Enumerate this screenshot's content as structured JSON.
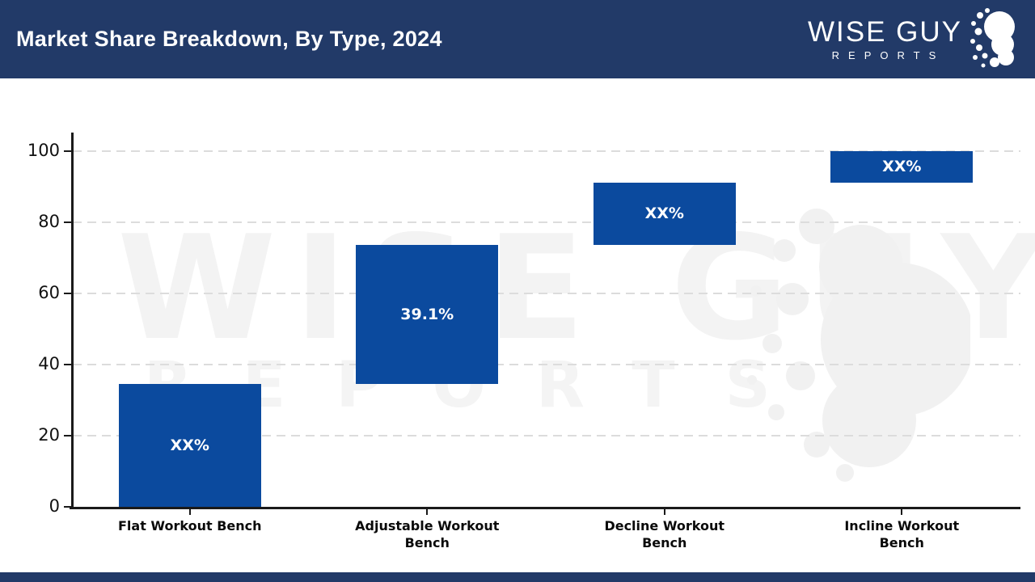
{
  "header": {
    "title": "Market Share Breakdown, By Type, 2024",
    "logo": {
      "line1": "WISE GUY",
      "line2": "REPORTS"
    }
  },
  "watermark": {
    "line1": "WISE GUY",
    "line2": "REPORTS"
  },
  "colors": {
    "header_bg": "#223a68",
    "footer_bg": "#223a68",
    "bar": "#0b4a9e",
    "bar_label": "#ffffff",
    "axis": "#1a1a1a",
    "tick_label": "#111111",
    "gridline": "#dcdcdc",
    "watermark": "#f3f3f3"
  },
  "chart_data": {
    "type": "bar",
    "subtype": "waterfall-floating-bars",
    "title": "Market Share Breakdown, By Type, 2024",
    "categories": [
      "Flat Workout Bench",
      "Adjustable Workout Bench",
      "Decline Workout Bench",
      "Incline Workout Bench"
    ],
    "segments": [
      {
        "category": "Flat Workout Bench",
        "start": 0,
        "end": 34.6,
        "label": "XX%"
      },
      {
        "category": "Adjustable Workout Bench",
        "start": 34.6,
        "end": 73.7,
        "label": "39.1%",
        "value": 39.1
      },
      {
        "category": "Decline Workout Bench",
        "start": 73.7,
        "end": 91.2,
        "label": "XX%"
      },
      {
        "category": "Incline Workout Bench",
        "start": 91.2,
        "end": 100,
        "label": "XX%"
      }
    ],
    "ylim": [
      0,
      100
    ],
    "yticks": [
      0,
      20,
      40,
      60,
      80,
      100
    ],
    "xlabel": "",
    "ylabel": "",
    "grid": "horizontal-dashed",
    "legend": false
  }
}
